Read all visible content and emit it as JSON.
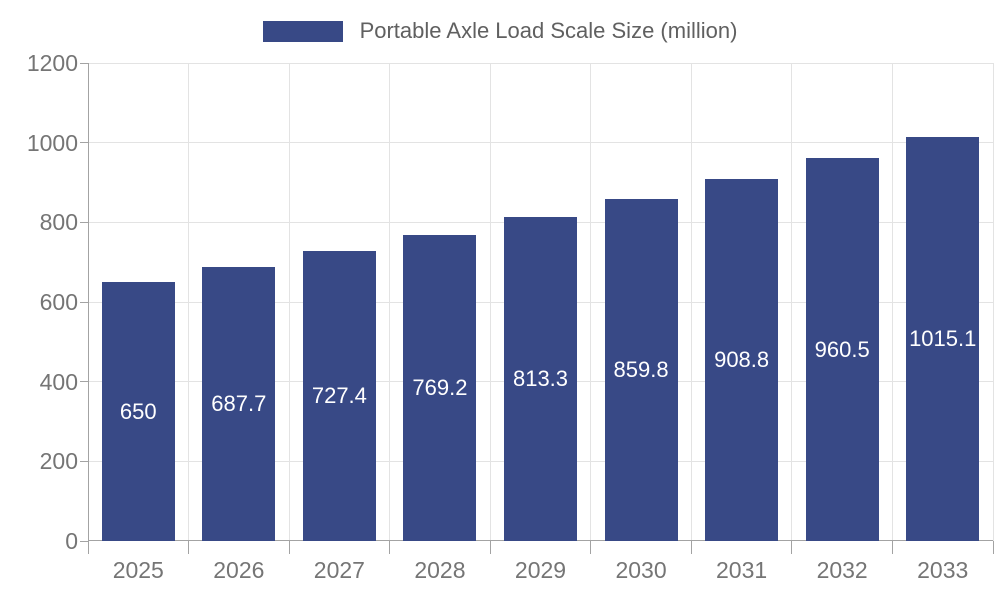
{
  "legend": {
    "label": "Portable Axle Load Scale Size (million)"
  },
  "colors": {
    "bar": "#384986",
    "grid_line": "#e3e3e3",
    "axis_line": "#a3a3a3",
    "tick_label": "#757575",
    "legend_text": "#606060",
    "value_label": "#ffffff"
  },
  "chart_data": {
    "type": "bar",
    "title": "Portable Axle Load Scale Size (million)",
    "categories": [
      "2025",
      "2026",
      "2027",
      "2028",
      "2029",
      "2030",
      "2031",
      "2032",
      "2033"
    ],
    "series": [
      {
        "name": "Portable Axle Load Scale Size (million)",
        "values": [
          650,
          687.7,
          727.4,
          769.2,
          813.3,
          859.8,
          908.8,
          960.5,
          1015.1
        ]
      }
    ],
    "value_labels": [
      "650",
      "687.7",
      "727.4",
      "769.2",
      "813.3",
      "859.8",
      "908.8",
      "960.5",
      "1015.1"
    ],
    "xlabel": "",
    "ylabel": "",
    "ylim": [
      0,
      1200
    ],
    "ytick_interval": 200,
    "yticks": [
      0,
      200,
      400,
      600,
      800,
      1000,
      1200
    ],
    "ytick_labels": [
      "0",
      "200",
      "400",
      "600",
      "800",
      "1000",
      "1200"
    ],
    "grid": true,
    "legend_position": "top"
  }
}
